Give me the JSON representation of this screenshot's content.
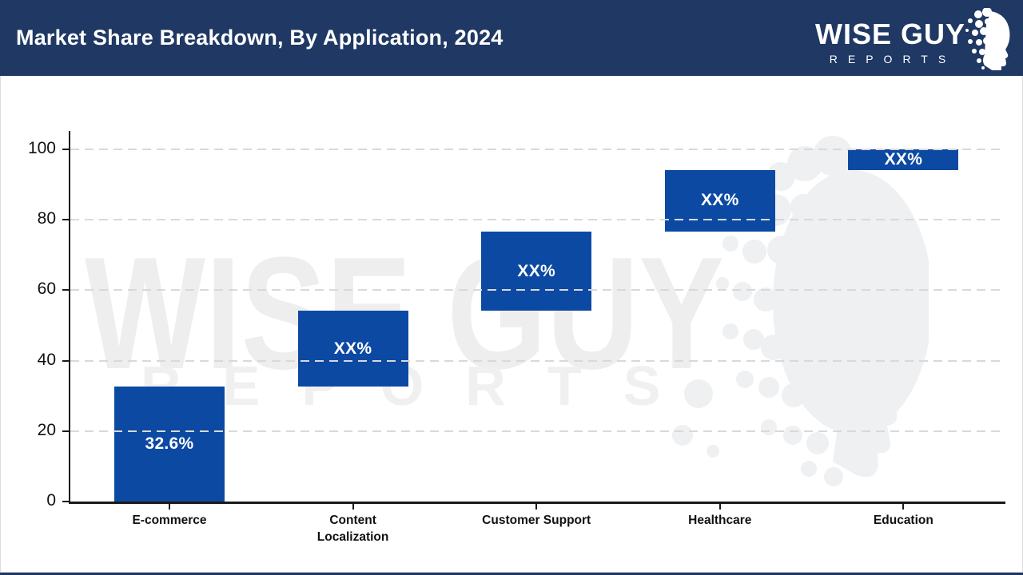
{
  "header": {
    "title": "Market Share Breakdown, By Application, 2024",
    "logo": {
      "line1": "WISE GUY",
      "line2": "REPORTS"
    }
  },
  "watermark": {
    "line1": "WISE GUY",
    "line2": "REPORTS"
  },
  "chart_data": {
    "type": "bar",
    "subtype": "waterfall",
    "title": "Market Share Breakdown, By Application, 2024",
    "categories": [
      "E-commerce",
      "Content Localization",
      "Customer Support",
      "Healthcare",
      "Education"
    ],
    "categories_lines": [
      [
        "E-commerce"
      ],
      [
        "Content",
        "Localization"
      ],
      [
        "Customer Support"
      ],
      [
        "Healthcare"
      ],
      [
        "Education"
      ]
    ],
    "segments": [
      {
        "category": "E-commerce",
        "start": 0,
        "end": 32.6,
        "label": "32.6%"
      },
      {
        "category": "Content Localization",
        "start": 32.6,
        "end": 54.2,
        "label": "XX%"
      },
      {
        "category": "Customer Support",
        "start": 54.2,
        "end": 76.6,
        "label": "XX%"
      },
      {
        "category": "Healthcare",
        "start": 76.6,
        "end": 94.2,
        "label": "XX%"
      },
      {
        "category": "Education",
        "start": 94.2,
        "end": 100,
        "label": "XX%"
      }
    ],
    "xlabel": "",
    "ylabel": "",
    "ylim": [
      0,
      100
    ],
    "yticks": [
      0,
      20,
      40,
      60,
      80,
      100
    ],
    "grid": "horizontal-dashed",
    "legend": null
  },
  "colors": {
    "header_bg": "#1f3864",
    "bar": "#0c49a3",
    "bar_label": "#ffffff",
    "gridline": "#d9d9d9",
    "axis": "#1a1a1a",
    "watermark": "#eeeeee",
    "canvas_bg": "#ffffff",
    "footer_bar": "#1f3864"
  }
}
